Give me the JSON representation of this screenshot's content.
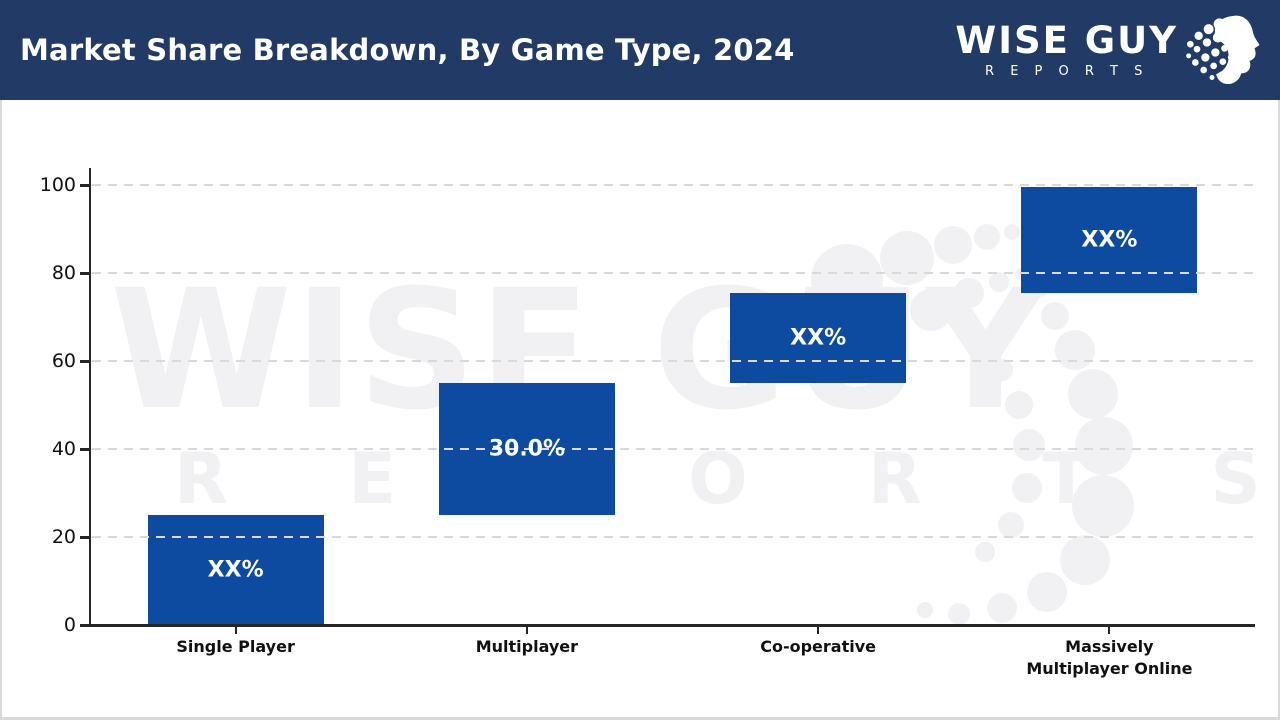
{
  "header": {
    "title": "Market Share Breakdown, By Game Type, 2024",
    "logo": {
      "wordmark": "WISE GUY",
      "subtext": "R E P O R T S"
    }
  },
  "watermark": {
    "wordmark": "WISE GUY",
    "subtext": "R E P O R T S"
  },
  "chart_data": {
    "type": "bar",
    "subtype": "floating-segment-waterfall",
    "title": "Market Share Breakdown, By Game Type, 2024",
    "categories": [
      "Single Player",
      "Multiplayer",
      "Co-operative",
      "Massively Multiplayer Online"
    ],
    "category_label_lines": [
      [
        "Single Player"
      ],
      [
        "Multiplayer"
      ],
      [
        "Co-operative"
      ],
      [
        "Massively",
        "Multiplayer Online"
      ]
    ],
    "segments": [
      {
        "category": "Single Player",
        "start": 0,
        "end": 25,
        "label": "XX%"
      },
      {
        "category": "Multiplayer",
        "start": 25,
        "end": 55,
        "label": "30.0%"
      },
      {
        "category": "Co-operative",
        "start": 55,
        "end": 75.5,
        "label": "XX%"
      },
      {
        "category": "Massively Multiplayer Online",
        "start": 75.5,
        "end": 99.5,
        "label": "XX%"
      }
    ],
    "xlabel": "",
    "ylabel": "",
    "ylim": [
      0,
      100
    ],
    "yticks": [
      0,
      20,
      40,
      60,
      80,
      100
    ],
    "grid": "horizontal-dashed",
    "legend_position": "none"
  },
  "colors": {
    "header_bg": "#213a66",
    "title_text": "#ffffff",
    "bar_fill": "#0c4ba0",
    "bar_label_text": "#ffffff",
    "grid_line": "#d9d9d9",
    "axis_line": "#262626",
    "tick_text": "#111111",
    "watermark": "#f1f1f3",
    "border": "#d9d9d9"
  }
}
